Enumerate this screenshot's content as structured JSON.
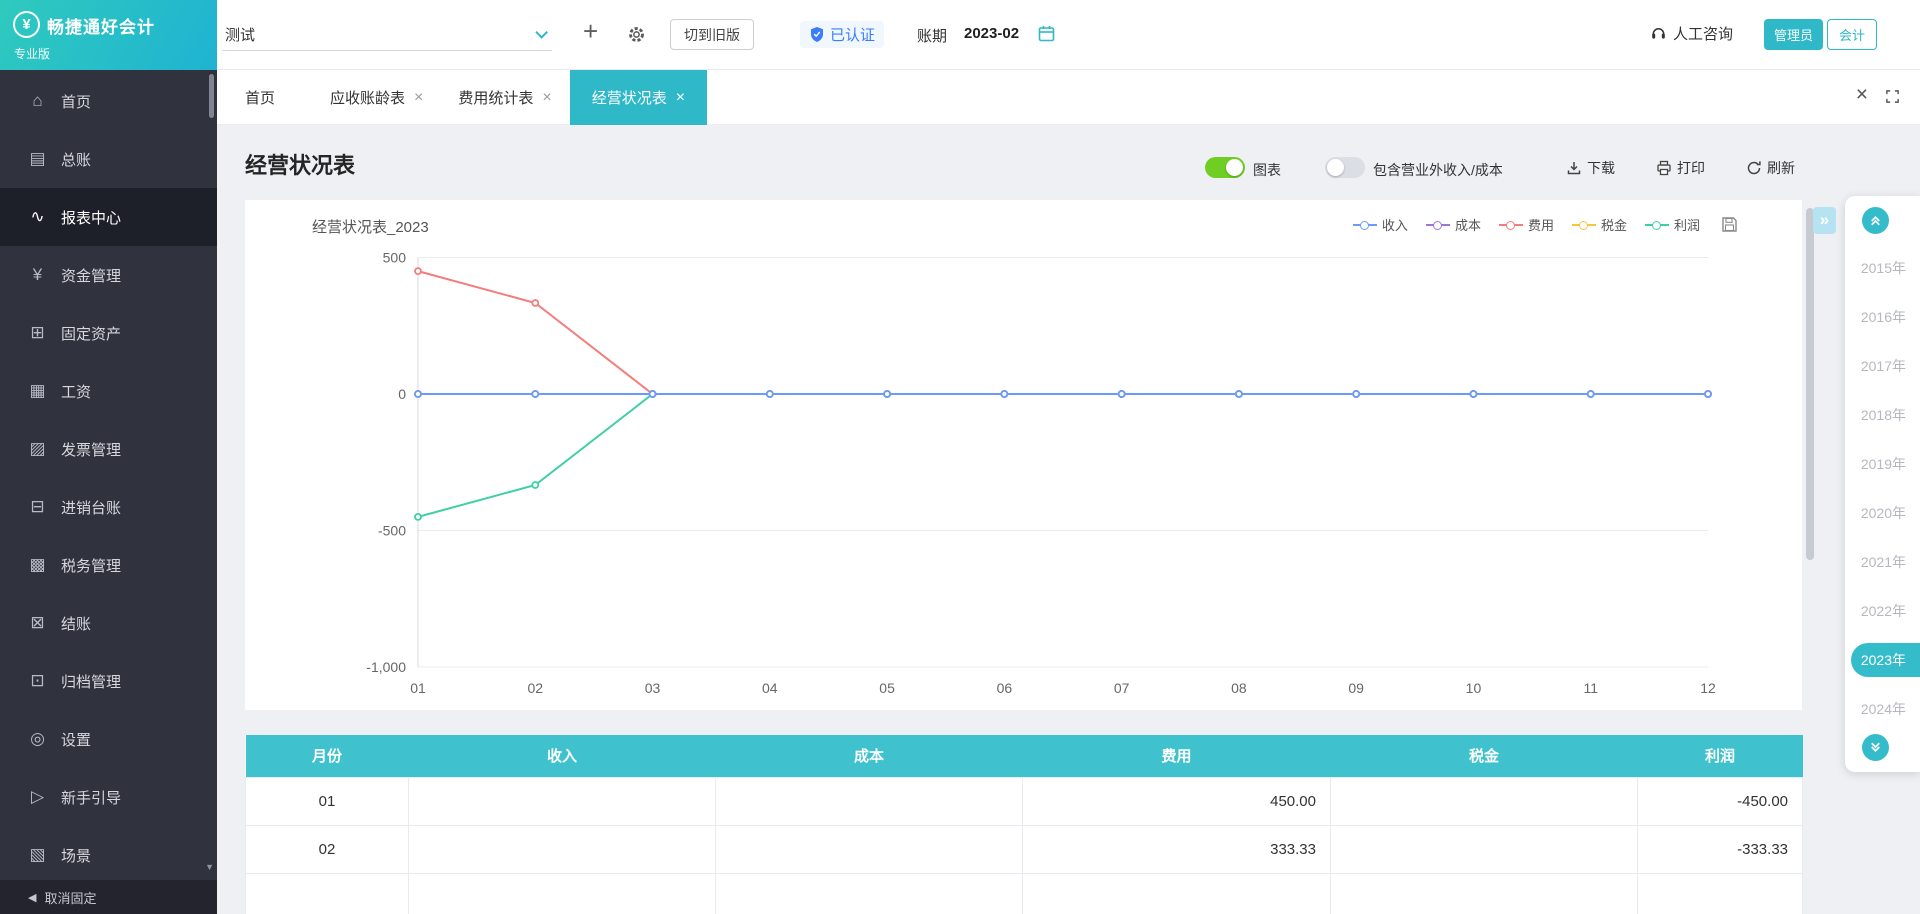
{
  "brand": {
    "name": "畅捷通好会计",
    "edition": "专业版"
  },
  "colors": {
    "accent": "#2eb8c8",
    "table_header_bg": "#3fc2ce",
    "sidebar_bg": "#30323e",
    "toggle_on": "#6fce21",
    "certified_blue": "#3a7dfc"
  },
  "header": {
    "account_select": "测试",
    "add_label": "+",
    "switch_old_button": "切到旧版",
    "certified_badge": "已认证",
    "period_label": "账期",
    "period_value": "2023-02",
    "support_label": "人工咨询",
    "admin_button": "管理员",
    "role_button": "会计"
  },
  "sidebar": {
    "items": [
      {
        "label": "首页",
        "icon": "home-icon"
      },
      {
        "label": "总账",
        "icon": "ledger-icon"
      },
      {
        "label": "报表中心",
        "icon": "report-center-icon",
        "active": true
      },
      {
        "label": "资金管理",
        "icon": "funds-icon"
      },
      {
        "label": "固定资产",
        "icon": "fixed-assets-icon"
      },
      {
        "label": "工资",
        "icon": "salary-icon"
      },
      {
        "label": "发票管理",
        "icon": "invoice-icon"
      },
      {
        "label": "进销台账",
        "icon": "inventory-icon"
      },
      {
        "label": "税务管理",
        "icon": "tax-icon"
      },
      {
        "label": "结账",
        "icon": "closing-icon"
      },
      {
        "label": "归档管理",
        "icon": "archive-icon"
      },
      {
        "label": "设置",
        "icon": "settings-icon"
      },
      {
        "label": "新手引导",
        "icon": "guide-icon"
      },
      {
        "label": "场景",
        "icon": "scene-icon"
      }
    ],
    "unpin_label": "取消固定"
  },
  "tabs": {
    "items": [
      {
        "label": "首页",
        "closable": false,
        "active": false
      },
      {
        "label": "应收账龄表",
        "closable": true,
        "active": false
      },
      {
        "label": "费用统计表",
        "closable": true,
        "active": false
      },
      {
        "label": "经营状况表",
        "closable": true,
        "active": true
      }
    ]
  },
  "page": {
    "title": "经营状况表",
    "chart_toggle_label": "图表",
    "include_toggle_label": "包含营业外收入/成本",
    "download_label": "下载",
    "print_label": "打印",
    "refresh_label": "刷新"
  },
  "chart_data": {
    "type": "line",
    "title": "经营状况表_2023",
    "x": [
      "01",
      "02",
      "03",
      "04",
      "05",
      "06",
      "07",
      "08",
      "09",
      "10",
      "11",
      "12"
    ],
    "ylim": [
      -1000,
      500
    ],
    "yticks": [
      500,
      0,
      -500,
      -1000
    ],
    "ytick_labels": [
      "500",
      "0",
      "-500",
      "-1,000"
    ],
    "grid": true,
    "legend_position": "top-right",
    "series": [
      {
        "name": "收入",
        "color": "#6b9bf7",
        "values": [
          0,
          0,
          0,
          0,
          0,
          0,
          0,
          0,
          0,
          0,
          0,
          0
        ]
      },
      {
        "name": "成本",
        "color": "#9d74d8",
        "values": [
          0,
          0,
          0,
          0,
          0,
          0,
          0,
          0,
          0,
          0,
          0,
          0
        ]
      },
      {
        "name": "费用",
        "color": "#f47c7c",
        "values": [
          450,
          333.33,
          0,
          0,
          0,
          0,
          0,
          0,
          0,
          0,
          0,
          0
        ]
      },
      {
        "name": "税金",
        "color": "#f7c63f",
        "values": [
          0,
          0,
          0,
          0,
          0,
          0,
          0,
          0,
          0,
          0,
          0,
          0
        ]
      },
      {
        "name": "利润",
        "color": "#3ed0a4",
        "values": [
          -450,
          -333.33,
          0,
          0,
          0,
          0,
          0,
          0,
          0,
          0,
          0,
          0
        ]
      }
    ]
  },
  "year_panel": {
    "items": [
      "2015年",
      "2016年",
      "2017年",
      "2018年",
      "2019年",
      "2020年",
      "2021年",
      "2022年",
      "2023年",
      "2024年"
    ],
    "selected": "2023年"
  },
  "table": {
    "headers": [
      "月份",
      "收入",
      "成本",
      "费用",
      "税金",
      "利润"
    ],
    "rows": [
      {
        "cells": [
          "01",
          "",
          "",
          "450.00",
          "",
          "-450.00"
        ]
      },
      {
        "cells": [
          "02",
          "",
          "",
          "333.33",
          "",
          "-333.33"
        ]
      }
    ]
  }
}
